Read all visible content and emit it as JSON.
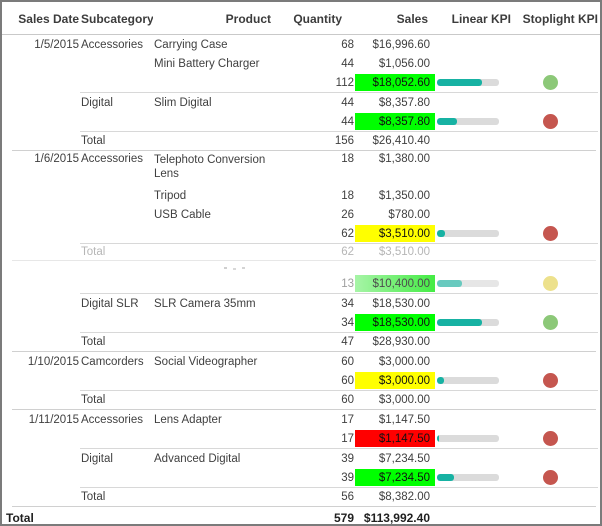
{
  "columns": [
    "Sales Date",
    "Subcategory",
    "Product",
    "Quantity",
    "Sales",
    "Linear KPI",
    "Stoplight KPI"
  ],
  "rows": [
    {
      "date": "1/5/2015",
      "subcategory": "Accessories",
      "product": "Carrying Case",
      "quantity": "68",
      "sales": "$16,996.60"
    },
    {
      "product": "Mini Battery Charger",
      "quantity": "44",
      "sales": "$1,056.00"
    },
    {
      "quantity": "112",
      "sales": "$18,052.60",
      "sales_bg": "#00FF00",
      "kpi_percent": 72,
      "light_color": "#8CC878",
      "stoplight": "green"
    },
    {
      "subcategory": "Digital",
      "product": "Slim Digital",
      "quantity": "44",
      "sales": "$8,357.80"
    },
    {
      "quantity": "44",
      "sales": "$8,357.80",
      "sales_bg": "#00FF00",
      "kpi_percent": 33,
      "light_color": "#C5564F",
      "stoplight": "red"
    },
    {
      "label": "Total",
      "quantity": "156",
      "sales": "$26,410.40"
    },
    {
      "date": "1/6/2015",
      "subcategory": "Accessories",
      "product": "Telephoto Conversion Lens",
      "quantity": "18",
      "sales": "$1,380.00"
    },
    {
      "product": "Tripod",
      "quantity": "18",
      "sales": "$1,350.00"
    },
    {
      "product": "USB Cable",
      "quantity": "26",
      "sales": "$780.00"
    },
    {
      "quantity": "62",
      "sales": "$3,510.00",
      "sales_bg": "#FFFF00",
      "kpi_percent": 13,
      "light_color": "#C5564F",
      "stoplight": "red"
    },
    {
      "label": "Total",
      "quantity": "62",
      "sales": "$3,510.00"
    },
    {},
    {
      "quantity": "13",
      "sales": "$10,400.00",
      "kpi_percent": 40,
      "light_color": "#EDE18C",
      "stoplight": "yellow"
    },
    {
      "subcategory": "Digital SLR",
      "product": "SLR Camera 35mm",
      "quantity": "34",
      "sales": "$18,530.00"
    },
    {
      "quantity": "34",
      "sales": "$18,530.00",
      "sales_bg": "#00FF00",
      "kpi_percent": 73,
      "light_color": "#8CC878",
      "stoplight": "green"
    },
    {
      "label": "Total",
      "quantity": "47",
      "sales": "$28,930.00"
    },
    {
      "date": "1/10/2015",
      "subcategory": "Camcorders",
      "product": "Social Videographer",
      "quantity": "60",
      "sales": "$3,000.00"
    },
    {
      "quantity": "60",
      "sales": "$3,000.00",
      "sales_bg": "#FFFF00",
      "kpi_percent": 12,
      "light_color": "#C5564F",
      "stoplight": "red"
    },
    {
      "label": "Total",
      "quantity": "60",
      "sales": "$3,000.00"
    },
    {
      "date": "1/11/2015",
      "subcategory": "Accessories",
      "product": "Lens Adapter",
      "quantity": "17",
      "sales": "$1,147.50"
    },
    {
      "quantity": "17",
      "sales": "$1,147.50",
      "sales_bg": "#FF0000",
      "kpi_percent": 4,
      "light_color": "#C5564F",
      "stoplight": "red"
    },
    {
      "subcategory": "Digital",
      "product": "Advanced Digital",
      "quantity": "39",
      "sales": "$7,234.50"
    },
    {
      "quantity": "39",
      "sales": "$7,234.50",
      "sales_bg": "#00FF00",
      "kpi_percent": 28,
      "light_color": "#C5564F",
      "stoplight": "red"
    },
    {
      "label": "Total",
      "quantity": "56",
      "sales": "$8,382.00"
    }
  ],
  "grand_total": {
    "label": "Total",
    "quantity": "579",
    "sales": "$113,992.40"
  },
  "kpi": {
    "bar_fill_color": "#17B2A3",
    "bar_track_color": "#DBDBDB"
  },
  "stoplight_colors": {
    "green": "#8CC878",
    "yellow": "#EDE18C",
    "red": "#C5564F"
  },
  "sales_cell_colors": {
    "good": "#00FF00",
    "warning": "#FFFF00",
    "bad": "#FF0000"
  }
}
